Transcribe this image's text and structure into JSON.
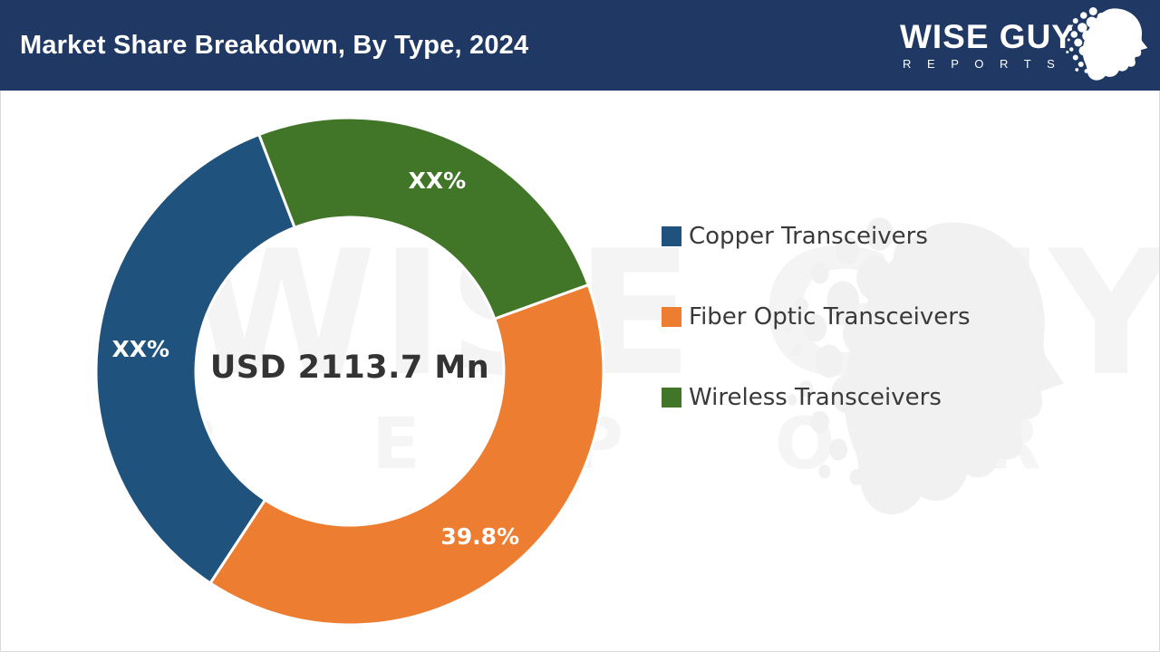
{
  "header": {
    "title": "Market Share Breakdown, By Type, 2024",
    "background_color": "#1F3864",
    "logo": {
      "line1": "WISE GUY",
      "line2": "R E P O R T S"
    }
  },
  "watermark": {
    "line1": "WISE GUY",
    "line2": "R E P O R T S"
  },
  "chart_data": {
    "type": "pie",
    "subtype": "donut",
    "center_label": "USD 2113.7 Mn",
    "start_angle_deg_clockwise_from_top": -21,
    "outer_radius_px": 280,
    "inner_radius_px": 170,
    "segments": [
      {
        "name": "Wireless Transceivers",
        "value_pct": 25.3,
        "label": "XX%",
        "color": "#417628"
      },
      {
        "name": "Fiber Optic Transceivers",
        "value_pct": 39.8,
        "label": "39.8%",
        "color": "#ED7D31"
      },
      {
        "name": "Copper Transceivers",
        "value_pct": 34.9,
        "label": "XX%",
        "color": "#1F527C"
      }
    ],
    "legend_position": "right",
    "grid": false
  },
  "legend": {
    "items": [
      {
        "label": "Copper Transceivers",
        "color": "#1F527C"
      },
      {
        "label": "Fiber Optic Transceivers",
        "color": "#ED7D31"
      },
      {
        "label": "Wireless Transceivers",
        "color": "#417628"
      }
    ]
  }
}
